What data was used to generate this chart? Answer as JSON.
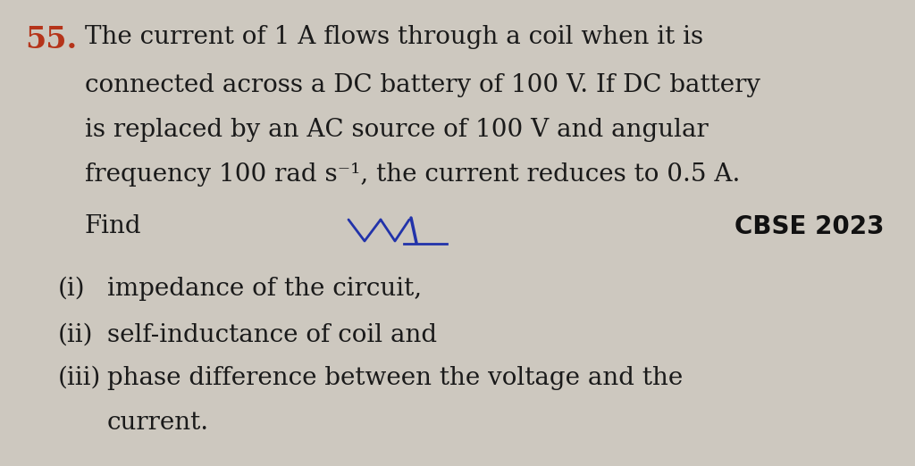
{
  "background_color": "#cdc8bf",
  "question_number": "55.",
  "question_number_color": "#b5341a",
  "main_text_lines": [
    "The current of 1 A flows through a coil when it is",
    "connected across a DC battery of 100 V. If DC battery",
    "is replaced by an AC source of 100 V and angular",
    "frequency 100 rad s⁻¹, the current reduces to 0.5 A."
  ],
  "find_text": "Find",
  "cbse_text": "CBSE 2023",
  "sub_items": [
    [
      "(i)",
      "impedance of the circuit,"
    ],
    [
      "(ii)",
      "self-inductance of coil and"
    ],
    [
      "(iii)",
      "phase difference between the voltage and the"
    ],
    [
      "",
      "current."
    ]
  ],
  "font_size_main": 20,
  "font_size_number": 24,
  "font_size_cbse": 20,
  "text_color": "#1a1a1a",
  "cbse_color": "#111111",
  "handwriting_color": "#2233aa"
}
